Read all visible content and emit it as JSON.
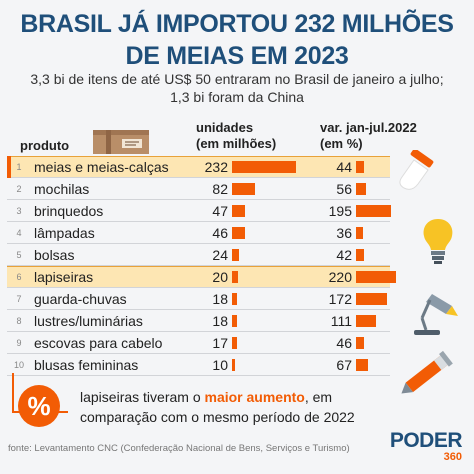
{
  "header": {
    "title_line1": "BRASIL JÁ IMPORTOU 232 MILHÕES",
    "title_line2": "DE MEIAS EM 2023",
    "subtitle_line1": "3,3 bi de itens de até US$ 50 entraram no Brasil de janeiro a julho;",
    "subtitle_line2": "1,3 bi foram da China"
  },
  "columns": {
    "product": "produto",
    "units_line1": "unidades",
    "units_line2": "(em milhões)",
    "var_line1": "var. jan-jul.2022",
    "var_line2": "(em %)"
  },
  "colors": {
    "accent": "#f25c05",
    "title": "#1f4f7a",
    "highlight": "#fde6b3"
  },
  "chart_data": {
    "type": "table",
    "rows": [
      {
        "rank": "1",
        "product": "meias e meias-calças",
        "units": 232,
        "units_label": "232",
        "var": 44,
        "var_label": "44",
        "highlight": true
      },
      {
        "rank": "2",
        "product": "mochilas",
        "units": 82,
        "units_label": "82",
        "var": 56,
        "var_label": "56",
        "highlight": false
      },
      {
        "rank": "3",
        "product": "brinquedos",
        "units": 47,
        "units_label": "47",
        "var": 195,
        "var_label": "195",
        "highlight": false
      },
      {
        "rank": "4",
        "product": "lâmpadas",
        "units": 46,
        "units_label": "46",
        "var": 36,
        "var_label": "36",
        "highlight": false
      },
      {
        "rank": "5",
        "product": "bolsas",
        "units": 24,
        "units_label": "24",
        "var": 42,
        "var_label": "42",
        "highlight": false
      },
      {
        "rank": "6",
        "product": "lapiseiras",
        "units": 20,
        "units_label": "20",
        "var": 220,
        "var_label": "220",
        "highlight": true
      },
      {
        "rank": "7",
        "product": "guarda-chuvas",
        "units": 18,
        "units_label": "18",
        "var": 172,
        "var_label": "172",
        "highlight": false
      },
      {
        "rank": "8",
        "product": "lustres/luminárias",
        "units": 18,
        "units_label": "18",
        "var": 111,
        "var_label": "111",
        "highlight": false
      },
      {
        "rank": "9",
        "product": "escovas para cabelo",
        "units": 17,
        "units_label": "17",
        "var": 46,
        "var_label": "46",
        "highlight": false
      },
      {
        "rank": "10",
        "product": "blusas femininas",
        "units": 10,
        "units_label": "10",
        "var": 67,
        "var_label": "67",
        "highlight": false
      }
    ],
    "units_max": 232,
    "var_max": 220
  },
  "callout": {
    "symbol": "%",
    "text_before": "lapiseiras tiveram o ",
    "text_strong": "maior aumento",
    "text_after": ", em comparação com o mesmo período de 2022"
  },
  "source": "fonte: Levantamento CNC (Confederação Nacional de Bens, Serviços e Turismo)",
  "logo": {
    "name": "PODER",
    "number": "360"
  },
  "icons": [
    "box-icon",
    "sock-icon",
    "lightbulb-icon",
    "desk-lamp-icon",
    "pencil-icon"
  ]
}
